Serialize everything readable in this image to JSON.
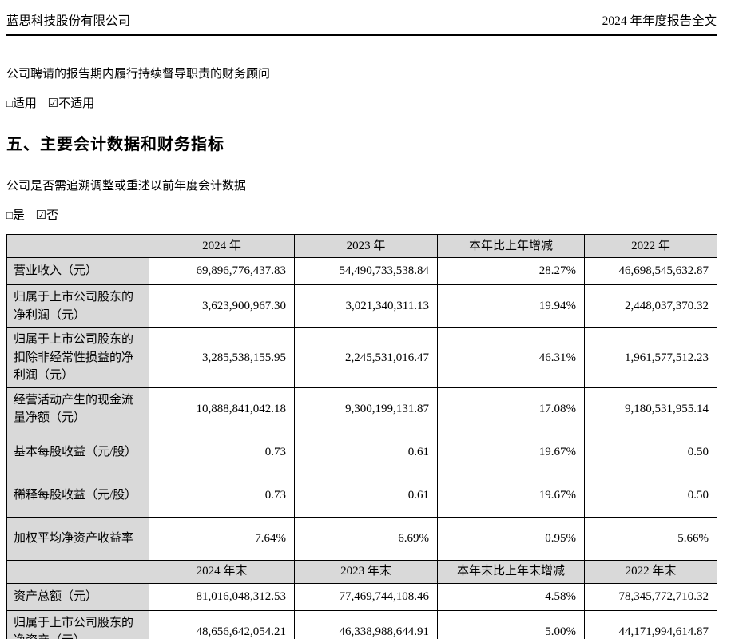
{
  "page_header": {
    "company_name": "蓝思科技股份有限公司",
    "report_title": "2024 年年度报告全文"
  },
  "advisor_block": {
    "statement": "公司聘请的报告期内履行持续督导职责的财务顾问",
    "options": [
      {
        "glyph": "□",
        "label": "适用",
        "checked": false
      },
      {
        "glyph": "☑",
        "label": "不适用",
        "checked": true
      }
    ]
  },
  "section": {
    "heading": "五、主要会计数据和财务指标",
    "restate_question": "公司是否需追溯调整或重述以前年度会计数据",
    "restate_options": [
      {
        "glyph": "□",
        "label": "是",
        "checked": false
      },
      {
        "glyph": "☑",
        "label": "否",
        "checked": true
      }
    ]
  },
  "financial_table": {
    "colors": {
      "header_bg": "#d9d9d9",
      "border": "#000000"
    },
    "annual_header": [
      "",
      "2024 年",
      "2023 年",
      "本年比上年增减",
      "2022 年"
    ],
    "annual_rows": [
      {
        "label": "营业收入（元）",
        "values": [
          "69,896,776,437.83",
          "54,490,733,538.84",
          "28.27%",
          "46,698,545,632.87"
        ]
      },
      {
        "label": "归属于上市公司股东的净利润（元）",
        "values": [
          "3,623,900,967.30",
          "3,021,340,311.13",
          "19.94%",
          "2,448,037,370.32"
        ]
      },
      {
        "label": "归属于上市公司股东的扣除非经常性损益的净利润（元）",
        "values": [
          "3,285,538,155.95",
          "2,245,531,016.47",
          "46.31%",
          "1,961,577,512.23"
        ]
      },
      {
        "label": "经营活动产生的现金流量净额（元）",
        "values": [
          "10,888,841,042.18",
          "9,300,199,131.87",
          "17.08%",
          "9,180,531,955.14"
        ]
      },
      {
        "label": "基本每股收益（元/股）",
        "values": [
          "0.73",
          "0.61",
          "19.67%",
          "0.50"
        ]
      },
      {
        "label": "稀释每股收益（元/股）",
        "values": [
          "0.73",
          "0.61",
          "19.67%",
          "0.50"
        ]
      },
      {
        "label": "加权平均净资产收益率",
        "values": [
          "7.64%",
          "6.69%",
          "0.95%",
          "5.66%"
        ]
      }
    ],
    "period_end_header": [
      "",
      "2024 年末",
      "2023 年末",
      "本年末比上年末增减",
      "2022 年末"
    ],
    "period_end_rows": [
      {
        "label": "资产总额（元）",
        "values": [
          "81,016,048,312.53",
          "77,469,744,108.46",
          "4.58%",
          "78,345,772,710.32"
        ]
      },
      {
        "label": "归属于上市公司股东的净资产（元）",
        "values": [
          "48,656,642,054.21",
          "46,338,988,644.91",
          "5.00%",
          "44,171,994,614.87"
        ]
      }
    ]
  }
}
